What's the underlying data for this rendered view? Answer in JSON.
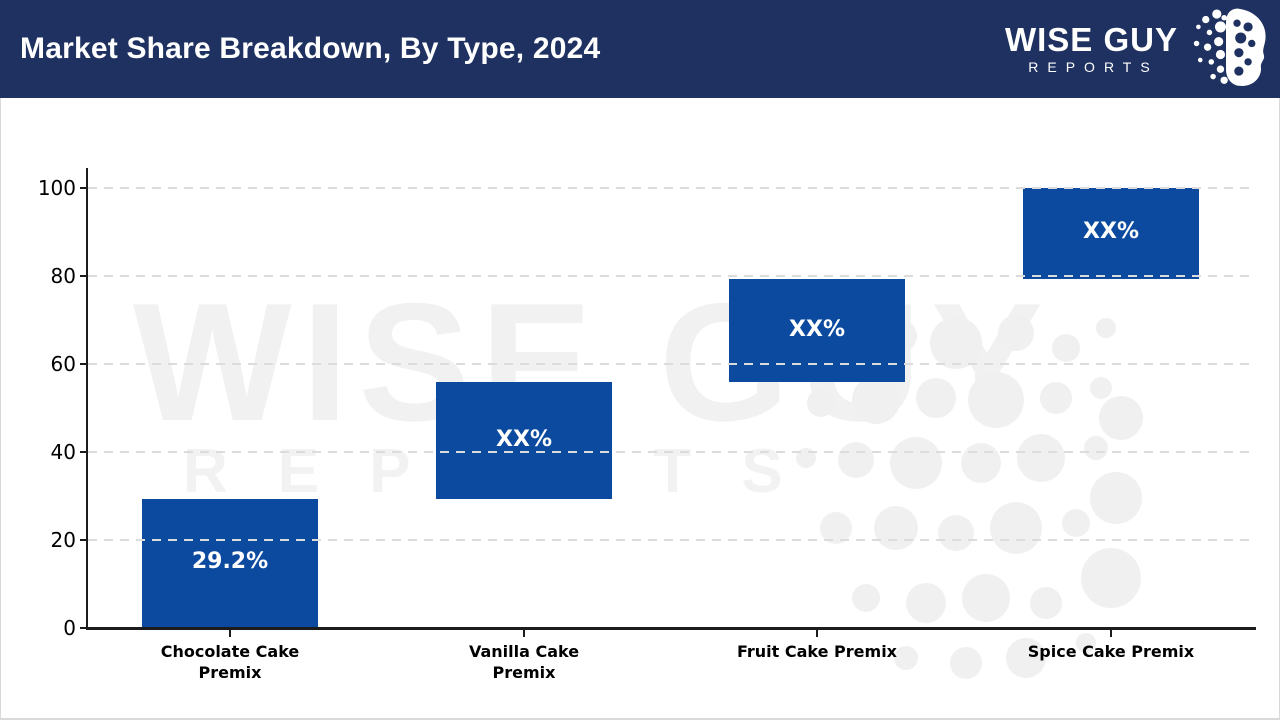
{
  "header": {
    "title": "Market Share Breakdown, By Type, 2024",
    "logo_line1": "WISE GUY",
    "logo_line2": "REPORTS"
  },
  "watermark": {
    "line1": "WISE GUY",
    "line2": "REPORTS"
  },
  "colors": {
    "header_bg": "#1e3160",
    "bar": "#0b4a9e",
    "axis": "#1c1c1c",
    "gridline": "#dcdcdc",
    "watermark": "#f1f1f1",
    "bar_label_text": "#ffffff"
  },
  "chart_data": {
    "type": "bar",
    "subtype": "waterfall",
    "title": "Market Share Breakdown, By Type, 2024",
    "xlabel": "",
    "ylabel": "",
    "ylim": [
      0,
      100
    ],
    "yticks": [
      0,
      20,
      40,
      60,
      80,
      100
    ],
    "grid": "horizontal-dashed",
    "legend": "none",
    "bar_color": "#0b4a9e",
    "categories": [
      "Chocolate Cake Premix",
      "Vanilla Cake Premix",
      "Fruit Cake Premix",
      "Spice Cake Premix"
    ],
    "category_label_lines": [
      [
        "Chocolate Cake",
        "Premix"
      ],
      [
        "Vanilla Cake",
        "Premix"
      ],
      [
        "Fruit Cake Premix"
      ],
      [
        "Spice Cake Premix"
      ]
    ],
    "series": [
      {
        "name": "Market Share",
        "segments": [
          {
            "category": "Chocolate Cake Premix",
            "start": 0,
            "end": 29.2,
            "label": "29.2%"
          },
          {
            "category": "Vanilla Cake Premix",
            "start": 29.2,
            "end": 55.8,
            "label": "XX%"
          },
          {
            "category": "Fruit Cake Premix",
            "start": 55.8,
            "end": 79.2,
            "label": "XX%"
          },
          {
            "category": "Spice Cake Premix",
            "start": 79.2,
            "end": 100,
            "label": "XX%"
          }
        ]
      }
    ]
  }
}
